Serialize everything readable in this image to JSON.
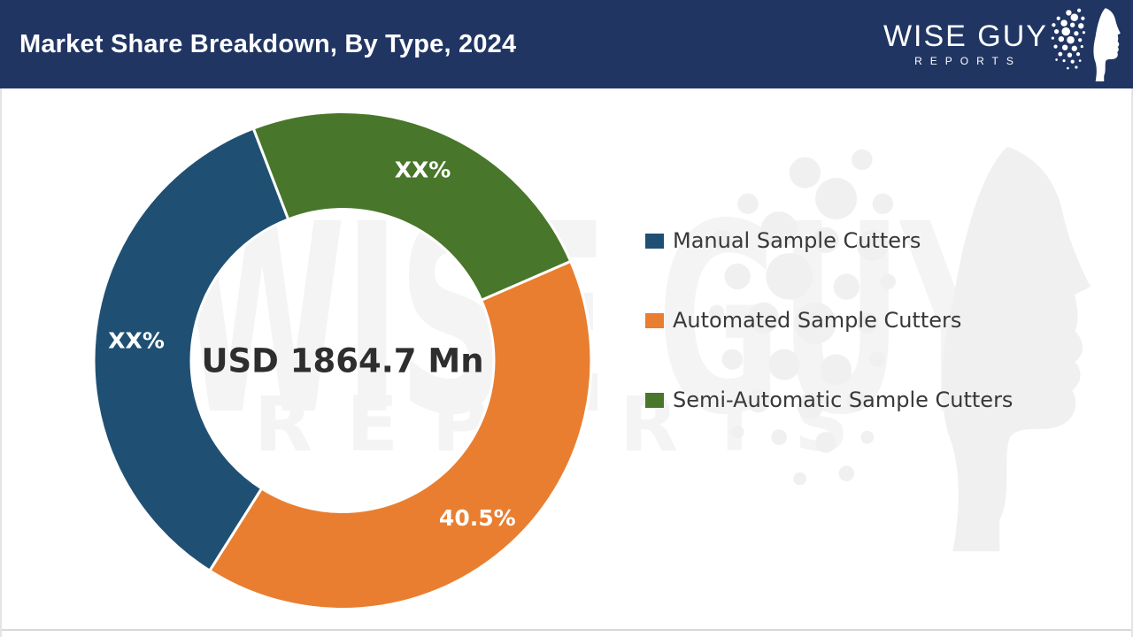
{
  "header": {
    "title": "Market Share Breakdown, By Type, 2024",
    "bg_color": "#213563",
    "logo": {
      "line1": "WISE GUY",
      "line2": "REPORTS"
    }
  },
  "watermark": {
    "line1": "WISE GUY",
    "line2": "REPORTS"
  },
  "chart_data": {
    "type": "pie",
    "variant": "donut",
    "title": "Market Share Breakdown, By Type, 2024",
    "center_label": "USD 1864.7 Mn",
    "start_angle_deg": 111,
    "direction": "counterclockwise",
    "legend_position": "right",
    "segments": [
      {
        "name": "Manual Sample Cutters",
        "display_label": "XX%",
        "value_pct": 35.2,
        "color": "#1f5074"
      },
      {
        "name": "Automated Sample Cutters",
        "display_label": "40.5%",
        "value_pct": 40.5,
        "color": "#e97e30"
      },
      {
        "name": "Semi-Automatic Sample Cutters",
        "display_label": "XX%",
        "value_pct": 24.3,
        "color": "#48762a"
      }
    ]
  }
}
